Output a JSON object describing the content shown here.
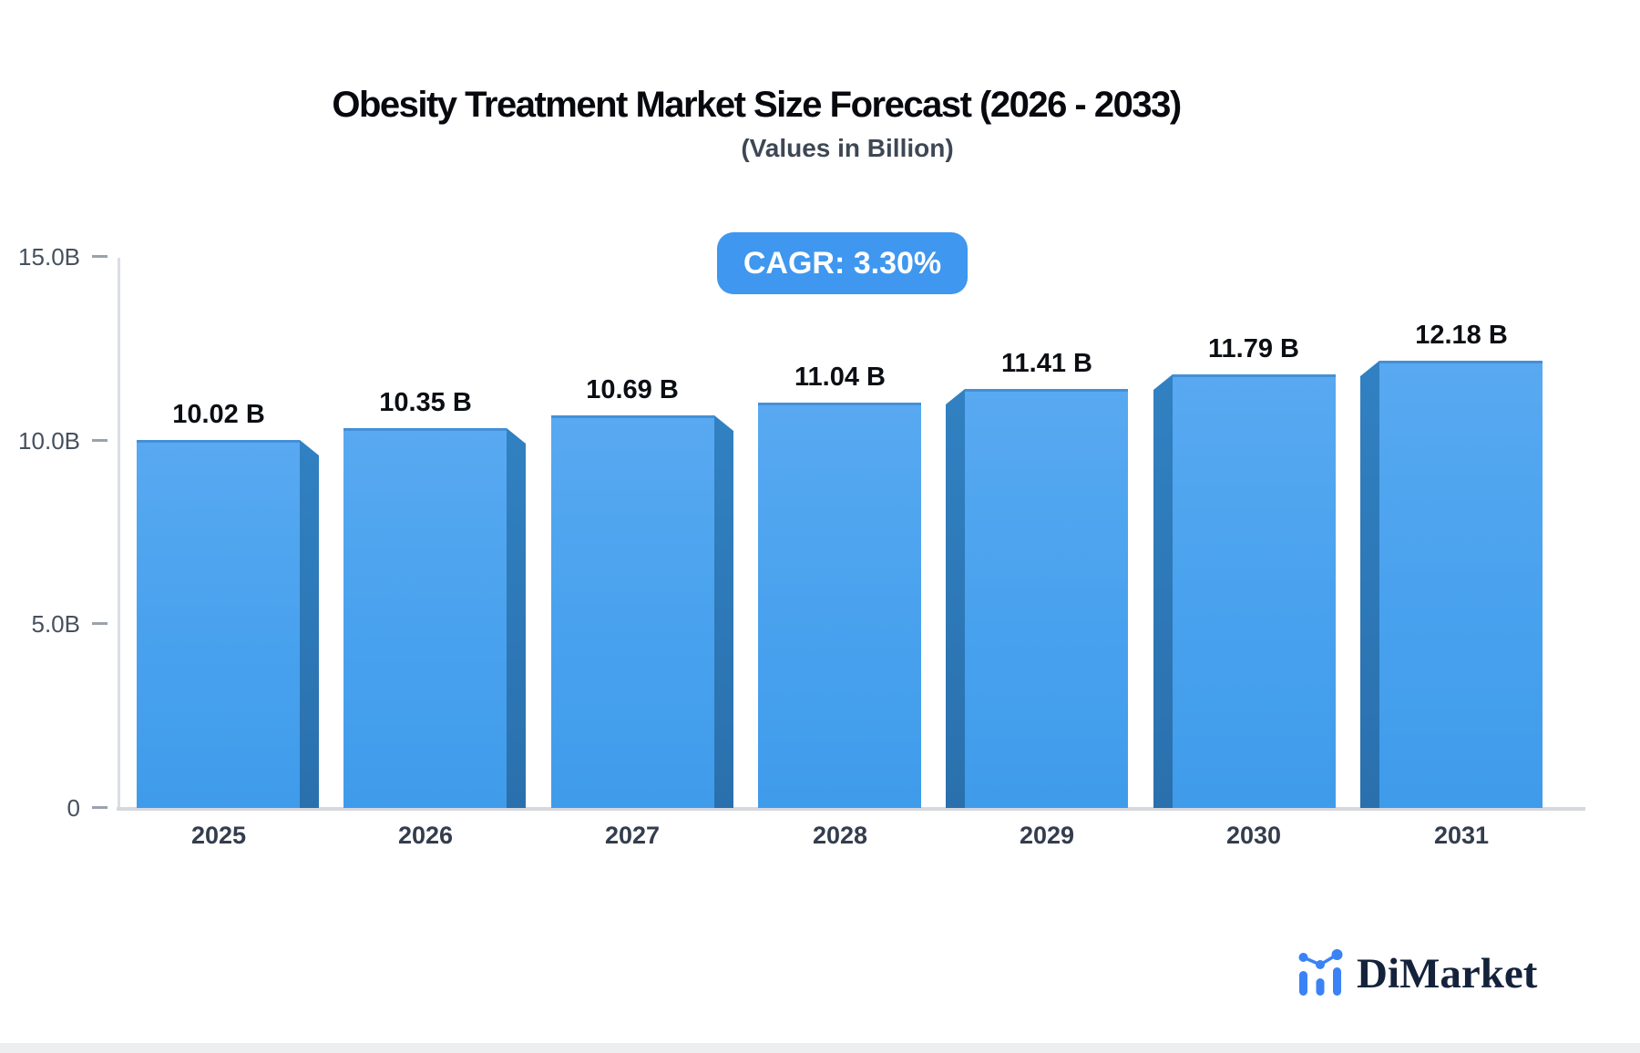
{
  "header": {
    "title": "Obesity Treatment Market Size Forecast (2026 - 2033)",
    "subtitle": "(Values in Billion)"
  },
  "badge": {
    "label": "CAGR: 3.30%",
    "bg_color": "#3f97ef",
    "text_color": "#ffffff"
  },
  "chart_data": {
    "type": "bar",
    "title": "Obesity Treatment Market Size Forecast (2026 - 2033)",
    "subtitle": "(Values in Billion)",
    "cagr": "CAGR: 3.30%",
    "categories": [
      "2025",
      "2026",
      "2027",
      "2028",
      "2029",
      "2030",
      "2031"
    ],
    "values": [
      10.02,
      10.35,
      10.69,
      11.04,
      11.41,
      11.79,
      12.18
    ],
    "value_labels": [
      "10.02 B",
      "10.35 B",
      "10.69 B",
      "11.04 B",
      "11.41 B",
      "11.79 B",
      "12.18 B"
    ],
    "unit": "Billion",
    "ylim": [
      0,
      15
    ],
    "y_ticks": [
      {
        "label": "15.0B",
        "value": 15
      },
      {
        "label": "10.0B",
        "value": 10
      },
      {
        "label": "5.0B",
        "value": 5
      },
      {
        "label": "0",
        "value": 0
      }
    ],
    "grid": false,
    "legend": "none",
    "bar_style": "3d-beveled",
    "colors": {
      "bar_face_top": "#58a9f1",
      "bar_face_bottom": "#3f9ceb",
      "bar_side_top": "#3181c2",
      "bar_side_bottom": "#2a70ad",
      "axis_line": "#dadde2",
      "tick_dash": "#9aa2ac",
      "tick_label": "#46505e",
      "category_label": "#333d4d",
      "value_label": "#0b0e13"
    }
  },
  "logo": {
    "text": "DiMarket",
    "icon": "dimarket-bar-chart-icon",
    "icon_color": "#3b82f6",
    "text_color": "#14223b"
  }
}
